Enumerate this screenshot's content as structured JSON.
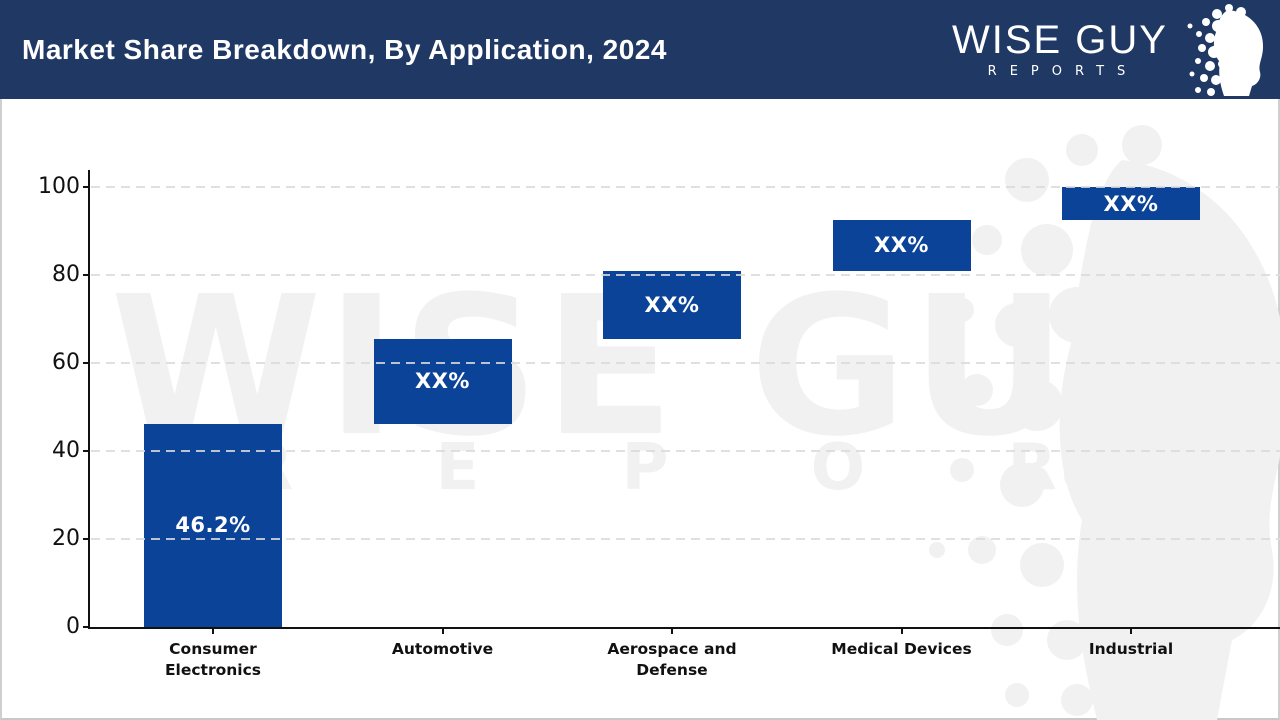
{
  "header": {
    "title": "Market Share Breakdown, By Application, 2024",
    "logo": {
      "line1": "WISE GUY",
      "line2": "REPORTS"
    }
  },
  "watermark": {
    "line1": "WISE GUY",
    "line2": "R E P O R T S"
  },
  "colors": {
    "header_bg": "#1f3864",
    "bar": "#0b4398",
    "axis": "#111111",
    "grid": "#dbdbdb",
    "watermark": "#f1f1f1",
    "bar_label": "#ffffff"
  },
  "chart_data": {
    "type": "bar",
    "subtype": "waterfall",
    "title": "Market Share Breakdown, By Application, 2024",
    "xlabel": "",
    "ylabel": "",
    "ylim": [
      0,
      100
    ],
    "grid": "dashed-horizontal",
    "legend": "none",
    "yticks": [
      0,
      20,
      40,
      60,
      80,
      100
    ],
    "categories": [
      "Consumer Electronics",
      "Automotive",
      "Aerospace and Defense",
      "Medical Devices",
      "Industrial"
    ],
    "values": [
      46.2,
      19.3,
      15.5,
      11.5,
      7.5
    ],
    "bars": [
      {
        "category": "Consumer Electronics",
        "start": 0,
        "end": 46.2,
        "label": "46.2%"
      },
      {
        "category": "Automotive",
        "start": 46.2,
        "end": 65.5,
        "label": "XX%"
      },
      {
        "category": "Aerospace and Defense",
        "start": 65.5,
        "end": 81.0,
        "label": "XX%"
      },
      {
        "category": "Medical Devices",
        "start": 81.0,
        "end": 92.5,
        "label": "XX%"
      },
      {
        "category": "Industrial",
        "start": 92.5,
        "end": 100,
        "label": "XX%"
      }
    ]
  }
}
